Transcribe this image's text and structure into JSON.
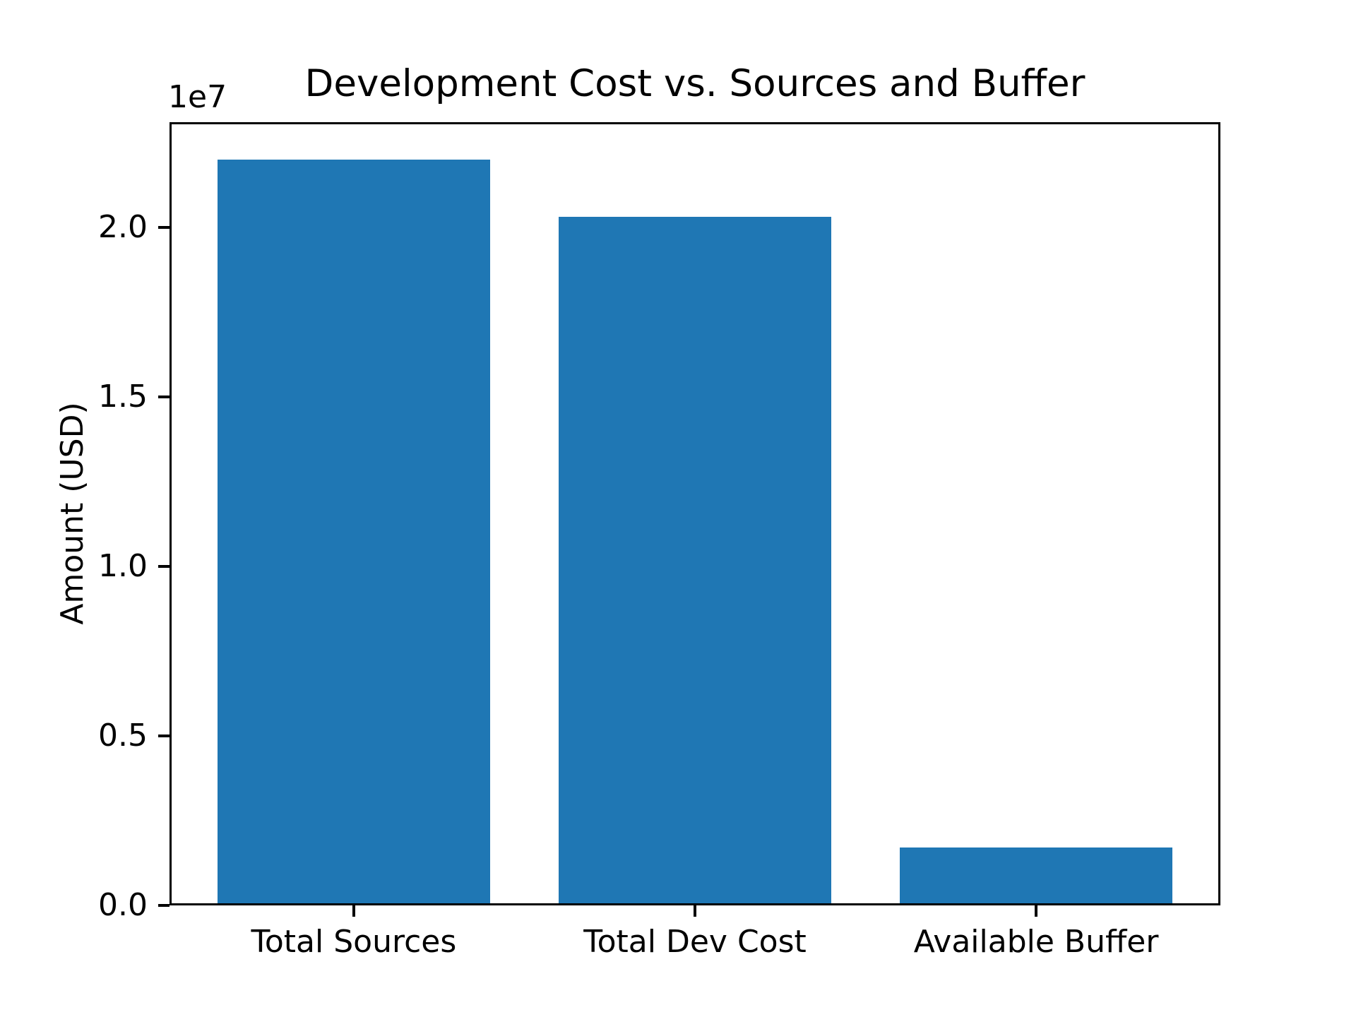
{
  "chart_data": {
    "type": "bar",
    "title": "Development Cost vs. Sources and Buffer",
    "ylabel": "Amount (USD)",
    "categories": [
      "Total Sources",
      "Total Dev Cost",
      "Available Buffer"
    ],
    "values": [
      22000000,
      20300000,
      1700000
    ],
    "bar_color": "#1f77b4",
    "axis_color": "#000000",
    "background_color": "#ffffff",
    "ylim": [
      0,
      23100000
    ],
    "yticks": {
      "values": [
        0,
        5000000,
        10000000,
        15000000,
        20000000
      ],
      "labels": [
        "0.0",
        "0.5",
        "1.0",
        "1.5",
        "2.0"
      ]
    },
    "y_offset_label": "1e7",
    "grid": false,
    "legend": false
  }
}
